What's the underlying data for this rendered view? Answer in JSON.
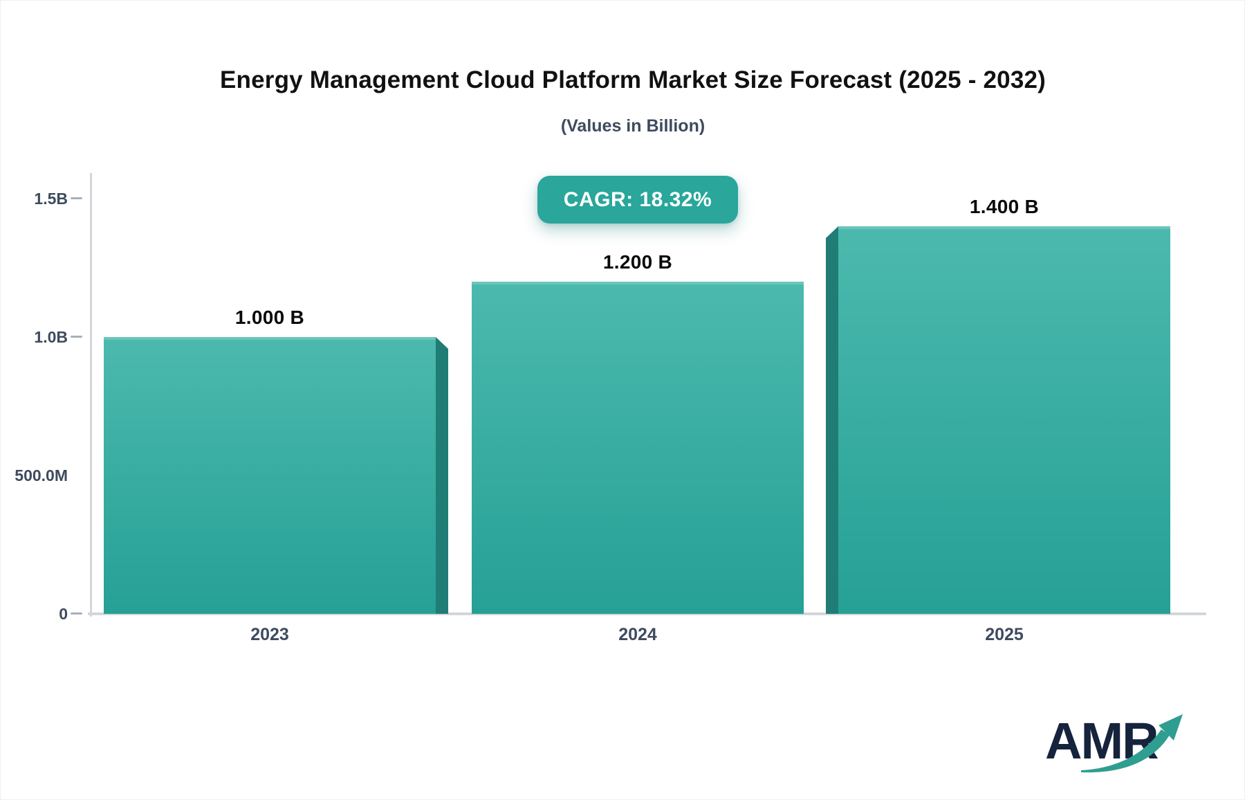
{
  "header": {
    "title": "Energy Management Cloud Platform Market Size Forecast (2025 - 2032)",
    "subtitle": "(Values in Billion)"
  },
  "badge": {
    "label": "CAGR: 18.32%",
    "bg_color": "#2aa69b"
  },
  "chart_data": {
    "type": "bar",
    "title": "Energy Management Cloud Platform Market Size Forecast (2025 - 2032)",
    "subtitle": "(Values in Billion)",
    "categories": [
      "2023",
      "2024",
      "2025"
    ],
    "values": [
      1.0,
      1.2,
      1.4
    ],
    "value_labels": [
      "1.000 B",
      "1.200 B",
      "1.400 B"
    ],
    "unit": "B",
    "ylim": [
      0,
      1.5
    ],
    "yticks": [
      {
        "value": 0,
        "label": "0",
        "tick": true
      },
      {
        "value": 0.5,
        "label": "500.0M",
        "tick": false
      },
      {
        "value": 1.0,
        "label": "1.0B",
        "tick": true
      },
      {
        "value": 1.5,
        "label": "1.5B",
        "tick": true
      }
    ],
    "grid": false,
    "legend": "none",
    "bar_color_top": "#4cb9ae",
    "bar_color_bottom": "#26a095",
    "bar_side_color": "#1f7d76"
  },
  "logo": {
    "text": "AMR",
    "text_color": "#16233c",
    "arrow_color": "#2f9e90"
  }
}
